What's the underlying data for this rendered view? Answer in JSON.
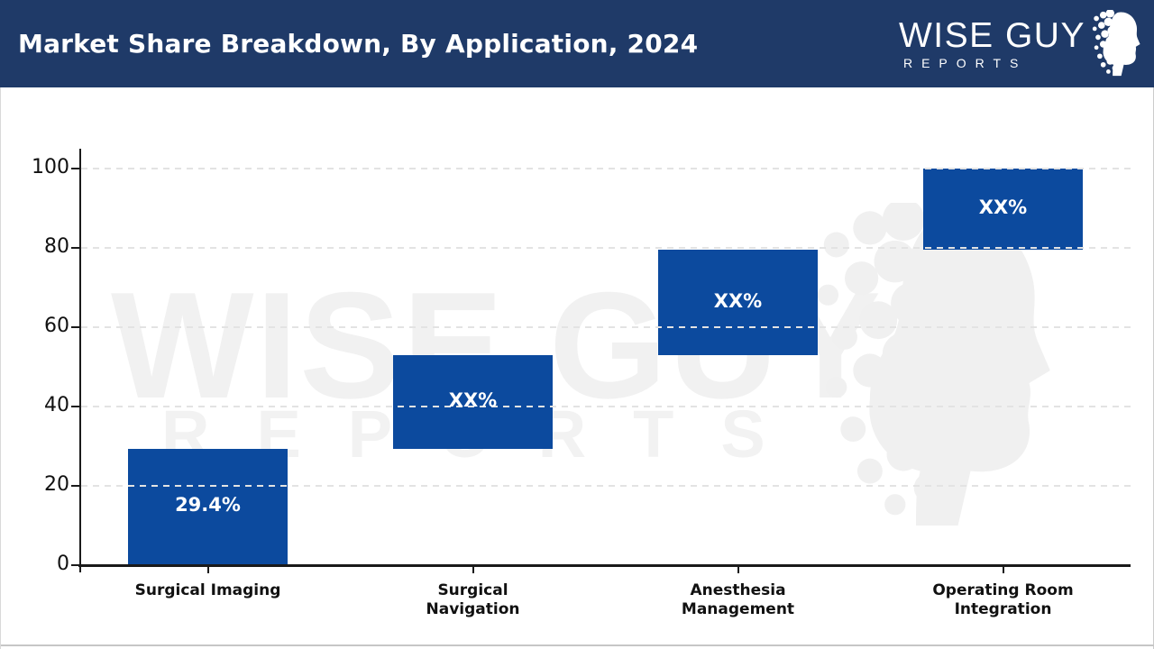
{
  "header": {
    "title": "Market Share Breakdown, By Application, 2024",
    "logo": {
      "brand": "WISE GUY",
      "sub": "REPORTS"
    }
  },
  "watermark": {
    "brand": "WISE GUY",
    "sub": "REPORTS"
  },
  "colors": {
    "header_bg": "#1f3a68",
    "bar": "#0c4a9e",
    "axis": "#1a1a1a",
    "gridline": "#e3e3e3",
    "bar_label_text": "#ffffff",
    "watermark": "#f1f1f1"
  },
  "chart_data": {
    "type": "bar",
    "subtype": "waterfall",
    "title": "Market Share Breakdown, By Application, 2024",
    "categories": [
      "Surgical Imaging",
      "Surgical Navigation",
      "Anesthesia Management",
      "Operating Room Integration"
    ],
    "category_label_lines": [
      [
        "Surgical Imaging"
      ],
      [
        "Surgical",
        "Navigation"
      ],
      [
        "Anesthesia",
        "Management"
      ],
      [
        "Operating Room",
        "Integration"
      ]
    ],
    "segments": [
      {
        "category": "Surgical Imaging",
        "start": 0,
        "end": 29.4,
        "value": 29.4,
        "label": "29.4%"
      },
      {
        "category": "Surgical Navigation",
        "start": 29.4,
        "end": 53.0,
        "value": 23.6,
        "label": "XX%"
      },
      {
        "category": "Anesthesia Management",
        "start": 53.0,
        "end": 79.5,
        "value": 26.5,
        "label": "XX%"
      },
      {
        "category": "Operating Room Integration",
        "start": 79.5,
        "end": 100.0,
        "value": 20.5,
        "label": "XX%"
      }
    ],
    "yticks": [
      0,
      20,
      40,
      60,
      80,
      100
    ],
    "ylim": [
      0,
      100
    ],
    "xlabel": "",
    "ylabel": "",
    "grid": {
      "horizontal": true,
      "style": "dashed",
      "drawn_over_bars": true
    },
    "legend": null
  }
}
